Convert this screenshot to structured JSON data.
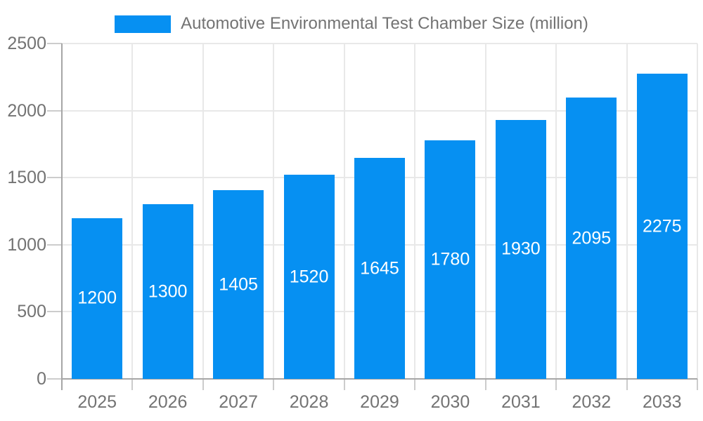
{
  "chart_data": {
    "type": "bar",
    "title": "Automotive Environmental Test Chamber Size (million)",
    "categories": [
      "2025",
      "2026",
      "2027",
      "2028",
      "2029",
      "2030",
      "2031",
      "2032",
      "2033"
    ],
    "values": [
      1200,
      1300,
      1405,
      1520,
      1645,
      1780,
      1930,
      2095,
      2275
    ],
    "xlabel": "",
    "ylabel": "",
    "ylim": [
      0,
      2500
    ],
    "yticks": [
      0,
      500,
      1000,
      1500,
      2000,
      2500
    ],
    "grid": true,
    "legend_position": "top",
    "value_labels": "inside-center",
    "colors": {
      "bar": "#0690F2",
      "value_label": "#FFFFFF",
      "tick_label": "#737373",
      "grid": "#E8E8E8",
      "axis_line": "#A6A6A6",
      "tick_mark": "#CCCCCC",
      "background": "#FFFFFF"
    }
  }
}
